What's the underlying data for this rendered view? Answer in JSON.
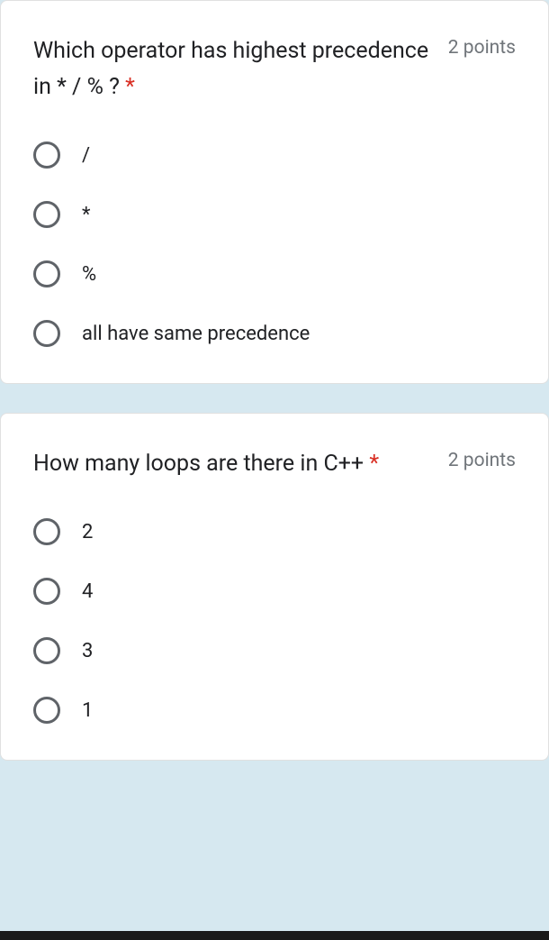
{
  "questions": [
    {
      "text": "Which operator has highest precedence in * / % ? ",
      "required": true,
      "points": "2 points",
      "options": [
        "/",
        "*",
        "%",
        "all have same precedence"
      ]
    },
    {
      "text": "How many loops are there in C++ ",
      "required": true,
      "points": "2 points",
      "options": [
        "2",
        "4",
        "3",
        "1"
      ]
    }
  ],
  "styles": {
    "background_color": "#d6e8f0",
    "card_background": "#ffffff",
    "text_color": "#202124",
    "points_color": "#70757a",
    "required_color": "#d93025",
    "radio_border_color": "#5f6368"
  }
}
